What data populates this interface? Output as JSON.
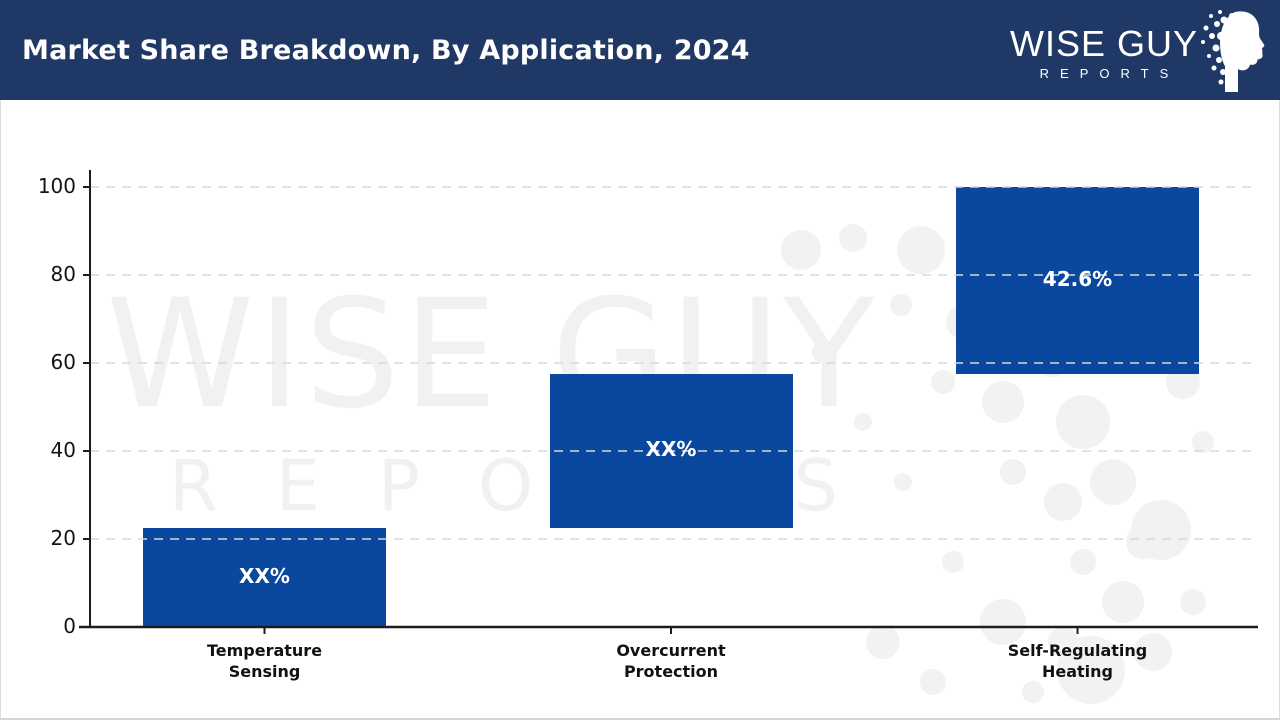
{
  "header": {
    "title": "Market Share Breakdown, By Application, 2024",
    "logo": {
      "line1": "WISE GUY",
      "line2": "REPORTS"
    }
  },
  "watermark": {
    "line1": "WISE GUY",
    "line2": "REPORTS"
  },
  "colors": {
    "header_bg": "#203866",
    "bar": "#0a479e",
    "grid": "#d8d8d8",
    "axis": "#1c1c1c",
    "tick_text": "#141414",
    "bar_label_text": "#ffffff",
    "watermark": "#f1f1f1"
  },
  "chart_data": {
    "type": "bar",
    "subtype": "waterfall",
    "title": "Market Share Breakdown, By Application, 2024",
    "categories": [
      "Temperature\nSensing",
      "Overcurrent\nProtection",
      "Self-Regulating\nHeating"
    ],
    "segments": [
      {
        "start": 0,
        "end": 22.4,
        "value": 22.4,
        "label": "XX%"
      },
      {
        "start": 22.4,
        "end": 57.4,
        "value": 35.0,
        "label": "XX%"
      },
      {
        "start": 57.4,
        "end": 100,
        "value": 42.6,
        "label": "42.6%"
      }
    ],
    "xlabel": "",
    "ylabel": "",
    "yticks": [
      0,
      20,
      40,
      60,
      80,
      100
    ],
    "ylim": [
      0,
      100
    ],
    "grid": "dashed-horizontal",
    "legend": "none"
  }
}
